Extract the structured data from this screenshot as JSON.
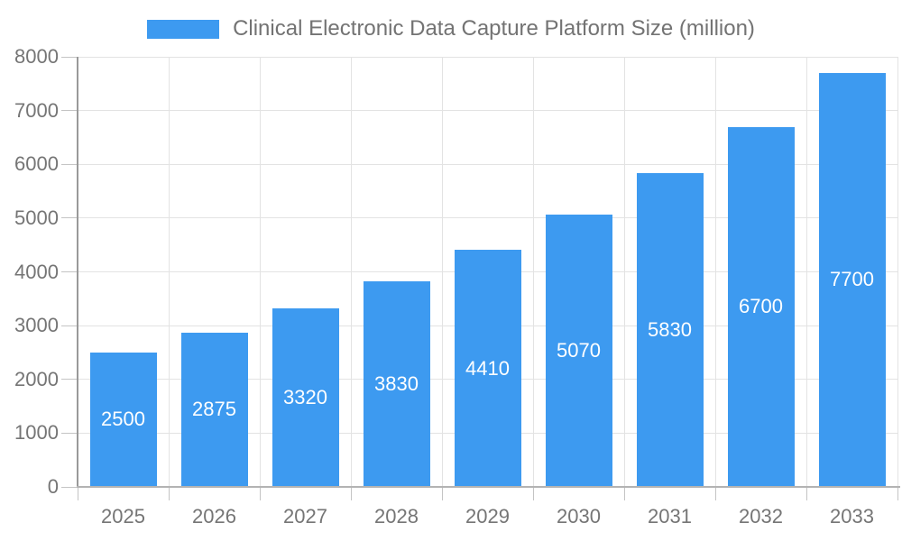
{
  "legend": {
    "label": "Clinical Electronic Data Capture Platform Size (million)"
  },
  "chart_data": {
    "type": "bar",
    "title": "Clinical Electronic Data Capture Platform Size (million)",
    "categories": [
      "2025",
      "2026",
      "2027",
      "2028",
      "2029",
      "2030",
      "2031",
      "2032",
      "2033"
    ],
    "values": [
      2500,
      2875,
      3320,
      3830,
      4410,
      5070,
      5830,
      6700,
      7700
    ],
    "series": [
      {
        "name": "Clinical Electronic Data Capture Platform Size (million)",
        "values": [
          2500,
          2875,
          3320,
          3830,
          4410,
          5070,
          5830,
          6700,
          7700
        ]
      }
    ],
    "bar_value_labels": [
      "2500",
      "2875",
      "3320",
      "3830",
      "4410",
      "5070",
      "5830",
      "6700",
      "7700"
    ],
    "xlabel": "",
    "ylabel": "",
    "ylim": [
      0,
      8000
    ],
    "yticks": [
      0,
      1000,
      2000,
      3000,
      4000,
      5000,
      6000,
      7000,
      8000
    ],
    "grid": true,
    "legend_position": "top-center",
    "colors": {
      "bar": "#3D9AF0",
      "bar_label": "#FFFFFF",
      "grid": "#E3E3E3",
      "tick": "#C4C4C4",
      "axis_y": "#999999",
      "axis_x": "#B3B3B3",
      "axis_text": "#757575",
      "legend_text": "#737373"
    }
  }
}
